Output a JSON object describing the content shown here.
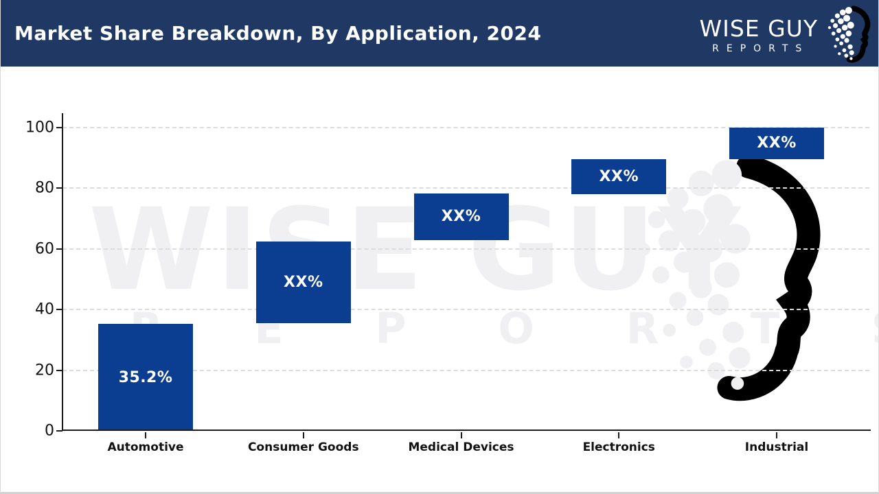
{
  "header": {
    "title": "Market Share Breakdown, By Application, 2024",
    "bg_color": "#1f3864",
    "text_color": "#ffffff"
  },
  "logo": {
    "line1": "WISE GUY",
    "line2": "REPORTS",
    "icon": "head-silhouette-dots"
  },
  "watermark": {
    "line1": "WISE GUY",
    "line2": "R E P O R T S",
    "icon": "head-silhouette-dots"
  },
  "chart_data": {
    "type": "bar",
    "subtype": "waterfall",
    "title": "Market Share Breakdown, By Application, 2024",
    "categories": [
      "Automotive",
      "Consumer Goods",
      "Medical Devices",
      "Electronics",
      "Industrial"
    ],
    "segments": [
      {
        "category": "Automotive",
        "start": 0,
        "end": 35.2,
        "label": "35.2%"
      },
      {
        "category": "Consumer Goods",
        "start": 35.5,
        "end": 62.5,
        "label": "XX%"
      },
      {
        "category": "Medical Devices",
        "start": 63,
        "end": 78.2,
        "label": "XX%"
      },
      {
        "category": "Electronics",
        "start": 78,
        "end": 89.7,
        "label": "XX%"
      },
      {
        "category": "Industrial",
        "start": 89.7,
        "end": 100,
        "label": "XX%"
      }
    ],
    "y_ticks": [
      0,
      20,
      40,
      60,
      80,
      100
    ],
    "ylim": [
      0,
      105
    ],
    "xlabel": "",
    "ylabel": "",
    "grid": "horizontal-dashed",
    "gridline_color": "#dcdcdc",
    "bar_color": "#0b3e91",
    "bar_label_color": "#ffffff",
    "axis_color": "#1c1c1c",
    "legend": "none"
  }
}
